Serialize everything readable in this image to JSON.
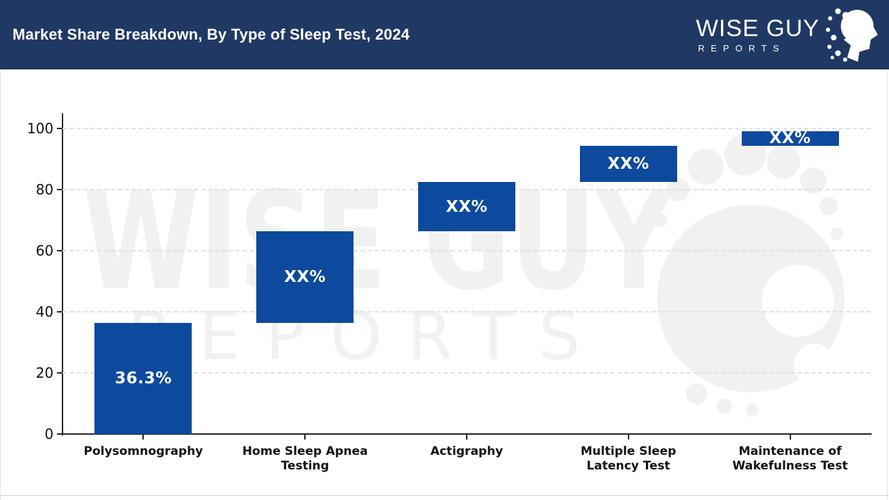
{
  "header": {
    "title": "Market Share Breakdown, By Type of Sleep Test, 2024",
    "logo": {
      "line1": "WISE GUY",
      "line2": "REPORTS"
    }
  },
  "watermark": {
    "line1": "WISE GUY",
    "line2": "REPORTS"
  },
  "chart_data": {
    "type": "bar",
    "variant": "waterfall",
    "title": "Market Share Breakdown, By Type of Sleep Test, 2024",
    "xlabel": "",
    "ylabel": "",
    "ylim": [
      0,
      105
    ],
    "y_ticks": [
      0,
      20,
      40,
      60,
      80,
      100
    ],
    "grid": "horizontal-dashed",
    "legend": "none",
    "categories": [
      "Polysomnography",
      "Home Sleep Apnea Testing",
      "Actigraphy",
      "Multiple Sleep Latency Test",
      "Maintenance of Wakefulness Test"
    ],
    "bars": [
      {
        "category": "Polysomnography",
        "category_lines": [
          "Polysomnography"
        ],
        "bar_label": "36.3%",
        "start_pct": 0,
        "end_pct": 36.3,
        "segment_pct": 36.3,
        "value_shown": true
      },
      {
        "category": "Home Sleep Apnea Testing",
        "category_lines": [
          "Home Sleep Apnea",
          "Testing"
        ],
        "bar_label": "XX%",
        "start_pct": 36.3,
        "end_pct": 66.3,
        "segment_pct": 30.0,
        "value_shown": false
      },
      {
        "category": "Actigraphy",
        "category_lines": [
          "Actigraphy"
        ],
        "bar_label": "XX%",
        "start_pct": 66.3,
        "end_pct": 82.5,
        "segment_pct": 16.2,
        "value_shown": false
      },
      {
        "category": "Multiple Sleep Latency Test",
        "category_lines": [
          "Multiple Sleep",
          "Latency Test"
        ],
        "bar_label": "XX%",
        "start_pct": 82.5,
        "end_pct": 94.4,
        "segment_pct": 11.9,
        "value_shown": false
      },
      {
        "category": "Maintenance of Wakefulness Test",
        "category_lines": [
          "Maintenance of",
          "Wakefulness Test"
        ],
        "bar_label": "XX%",
        "start_pct": 94.4,
        "end_pct": 99.1,
        "segment_pct": 4.7,
        "value_shown": false
      }
    ]
  },
  "colors": {
    "header_bg": "#203864",
    "bar_fill": "#0d4a9e",
    "bar_label": "#ffffff",
    "axis": "#262626",
    "grid": "#e0e0e0",
    "tick_label": "#111111",
    "watermark": "#f1f1f1",
    "page_bg": "#ffffff"
  }
}
